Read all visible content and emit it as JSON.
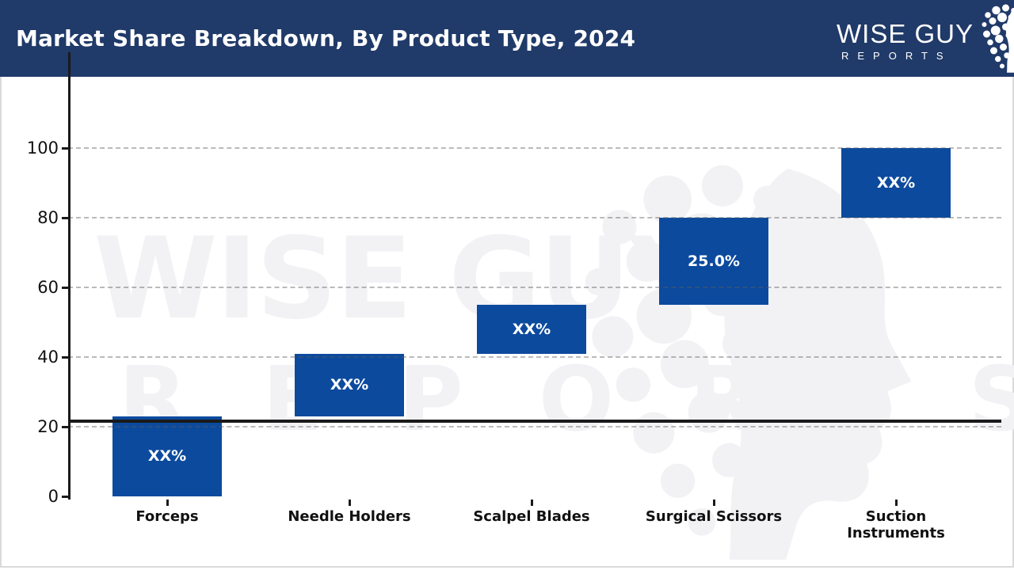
{
  "header": {
    "title": "Market Share Breakdown, By Product Type, 2024",
    "logo": {
      "name": "WISE GUY",
      "sub": "REPORTS"
    }
  },
  "watermark": {
    "line1": "WISE GUY",
    "line2": "R E P O R T S"
  },
  "colors": {
    "header_bg": "#203a69",
    "title_text": "#ffffff",
    "bar_fill": "#0c4a9e",
    "bar_label_text": "#ffffff",
    "axis": "#1a1a1a",
    "gridline": "rgba(90,90,90,0.42)",
    "watermark": "#f2f2f5"
  },
  "chart_data": {
    "type": "bar",
    "subtype": "waterfall",
    "title": "Market Share Breakdown, By Product Type, 2024",
    "categories": [
      "Forceps",
      "Needle Holders",
      "Scalpel Blades",
      "Surgical Scissors",
      "Suction\nInstruments"
    ],
    "segments": [
      {
        "category": "Forceps",
        "start": 0,
        "end": 23,
        "label": "XX%"
      },
      {
        "category": "Needle Holders",
        "start": 23,
        "end": 41,
        "label": "XX%"
      },
      {
        "category": "Scalpel Blades",
        "start": 41,
        "end": 55,
        "label": "XX%"
      },
      {
        "category": "Surgical Scissors",
        "start": 55,
        "end": 80,
        "label": "25.0%"
      },
      {
        "category": "Suction Instruments",
        "start": 80,
        "end": 100,
        "label": "XX%"
      }
    ],
    "segment_heights_pct": [
      23,
      18,
      14,
      25,
      20
    ],
    "yticks": [
      0,
      20,
      40,
      60,
      80,
      100
    ],
    "ylim": [
      0,
      105.5
    ],
    "xlabel": "",
    "ylabel": "",
    "grid": "dashed-horizontal",
    "legend": "none"
  }
}
